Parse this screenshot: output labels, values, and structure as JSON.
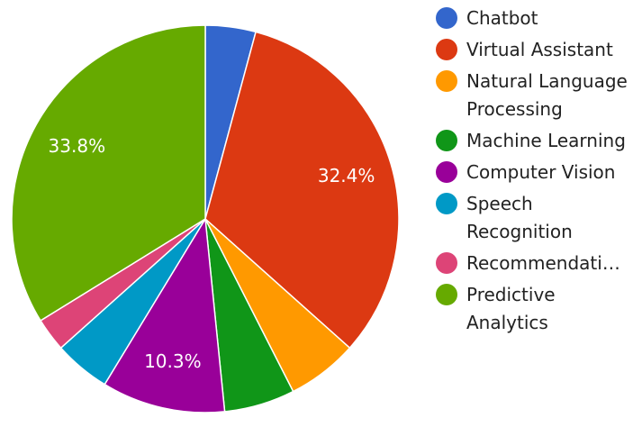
{
  "chart_data": {
    "type": "pie",
    "categories": [
      "Chatbot",
      "Virtual Assistant",
      "Natural Language Processing",
      "Machine Learning",
      "Computer Vision",
      "Speech Recognition",
      "Recommendati…",
      "Predictive Analytics"
    ],
    "values": [
      4.2,
      32.4,
      5.9,
      5.9,
      10.3,
      4.7,
      2.8,
      33.8
    ],
    "value_labels": [
      null,
      "32.4%",
      null,
      null,
      "10.3%",
      null,
      null,
      "33.8%"
    ],
    "colors": [
      "#3366cc",
      "#dc3912",
      "#ff9900",
      "#109618",
      "#990099",
      "#0099c6",
      "#dd4477",
      "#66aa00"
    ],
    "legend": "right"
  }
}
